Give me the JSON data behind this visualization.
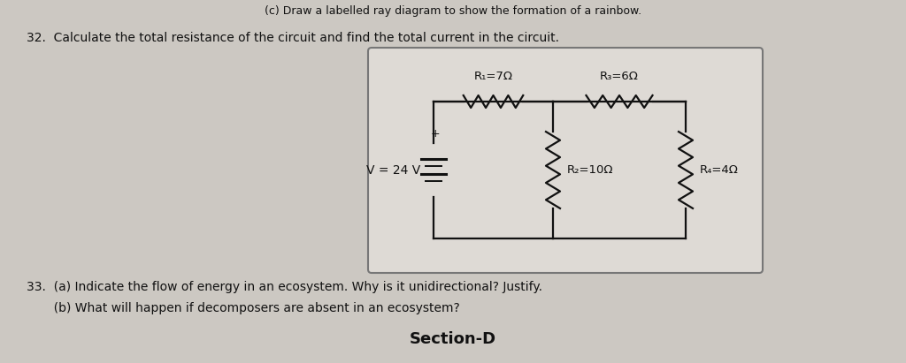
{
  "background_color": "#ccc8c2",
  "page_text_color": "#111111",
  "q32_text": "32.  Calculate the total resistance of the circuit and find the total current in the circuit.",
  "q33_text_a": "33.  (a) Indicate the flow of energy in an ecosystem. Why is it unidirectional? Justify.",
  "q33_text_b": "       (b) What will happen if decomposers are absent in an ecosystem?",
  "section_text": "Section-D",
  "top_text": "(c) Draw a labelled ray diagram to show the formation of a rainbow.",
  "circuit_box_color": "#dedad5",
  "circuit_line_color": "#111111",
  "r1_label": "R₁=7Ω",
  "r2_label": "R₂=10Ω",
  "r3_label": "R₃=6Ω",
  "r4_label": "R₄=4Ω",
  "v_label": "V = 24 V"
}
